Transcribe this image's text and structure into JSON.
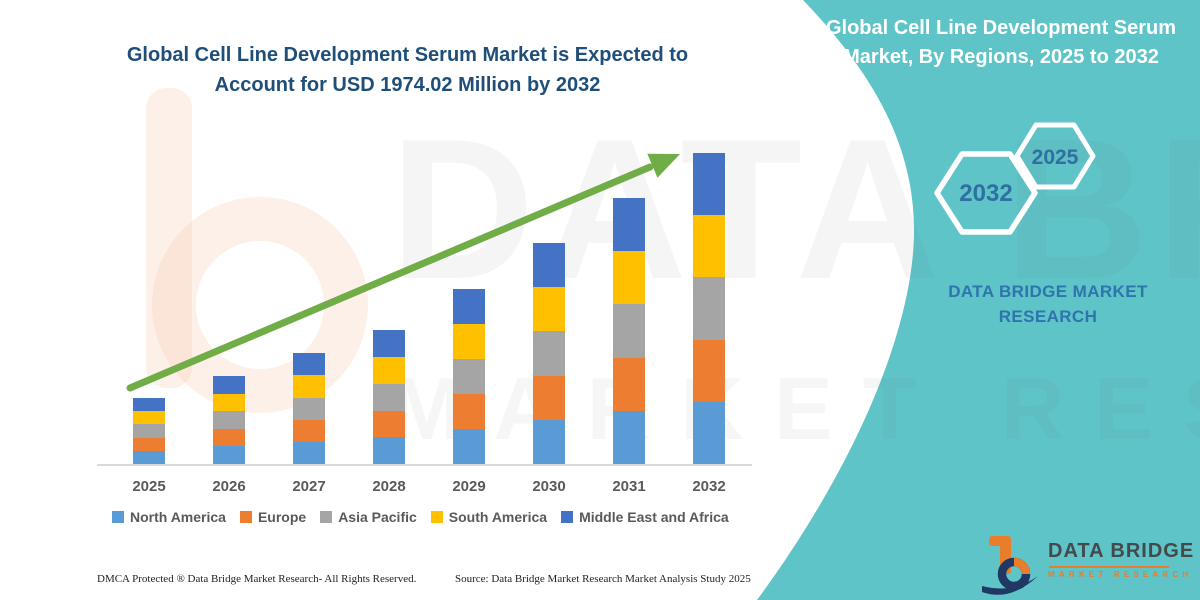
{
  "chart": {
    "title_line1": "Global Cell Line Development Serum Market is Expected to",
    "title_line2": "Account for USD 1974.02 Million by 2032"
  },
  "chart_data": {
    "type": "bar",
    "stacked": true,
    "title": "Global Cell Line Development Serum Market is Expected to Account for USD 1974.02 Million by 2032",
    "unit": "USD Million",
    "categories": [
      "2025",
      "2026",
      "2027",
      "2028",
      "2029",
      "2030",
      "2031",
      "2032"
    ],
    "series": [
      {
        "name": "North America",
        "color": "#5B9BD5",
        "values": [
          83.6,
          111.4,
          140.4,
          169.6,
          222.6,
          280.8,
          337.8,
          394.8
        ]
      },
      {
        "name": "Europe",
        "color": "#ED7D31",
        "values": [
          83.6,
          111.4,
          140.4,
          169.6,
          222.6,
          280.8,
          337.8,
          394.8
        ]
      },
      {
        "name": "Asia Pacific",
        "color": "#A5A5A5",
        "values": [
          83.6,
          111.4,
          140.4,
          169.6,
          222.6,
          280.8,
          337.8,
          394.8
        ]
      },
      {
        "name": "South America",
        "color": "#FFC000",
        "values": [
          83.6,
          111.4,
          140.4,
          169.6,
          222.6,
          280.8,
          337.8,
          394.8
        ]
      },
      {
        "name": "Middle East and Africa",
        "color": "#4472C4",
        "values": [
          83.6,
          111.4,
          140.4,
          169.6,
          222.6,
          280.8,
          337.8,
          394.8
        ]
      }
    ],
    "totals": [
      418,
      557,
      702,
      848,
      1113,
      1404,
      1689,
      1974.02
    ],
    "ylim": [
      0,
      2000
    ],
    "grid": false,
    "legend_position": "bottom",
    "annotations": [
      "growth trend arrow pointing up-right"
    ]
  },
  "sidebar": {
    "title_line1": "Global Cell Line Development Serum",
    "title_line2": "Market, By Regions, 2025 to 2032",
    "hex_large_year": "2032",
    "hex_small_year": "2025",
    "brand_line1": "DATA BRIDGE MARKET",
    "brand_line2": "RESEARCH",
    "logo_title": "DATA BRIDGE",
    "logo_subtitle": "MARKET RESEARCH"
  },
  "footer": {
    "dmca": "DMCA Protected ® Data Bridge Market Research-  All Rights Reserved.",
    "source": "Source: Data Bridge Market Research  Market Analysis Study 2025"
  },
  "watermark": {
    "line1": "DATA BRIDGE",
    "line2": "MARKET RESEARCH"
  },
  "colors": {
    "panel_teal": "#5EC4C8",
    "arrow_green": "#70AD47",
    "title_navy": "#1F4E79",
    "axis_text": "#595959",
    "hex_year_blue": "#2F6FA3",
    "brand_blue": "#2E74AD",
    "logo_navy": "#1F3864",
    "logo_orange": "#E87D2B"
  }
}
